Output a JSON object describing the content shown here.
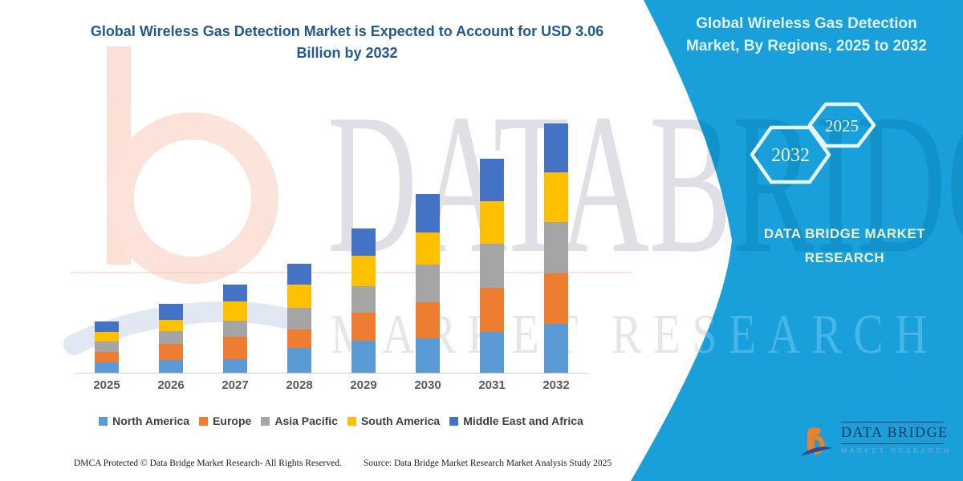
{
  "page": {
    "title": "Global Wireless Gas Detection Market is Expected to Account for USD 3.06 Billion by 2032"
  },
  "chart_data": {
    "type": "bar",
    "stacked": true,
    "title": "Global Wireless Gas Detection Market is Expected to Account for USD 3.06 Billion by 2032",
    "unit": "USD Billion",
    "categories": [
      "2025",
      "2026",
      "2027",
      "2028",
      "2029",
      "2030",
      "2031",
      "2032"
    ],
    "series": [
      {
        "name": "North America",
        "color": "#5B9BD5",
        "values": [
          0.13,
          0.16,
          0.17,
          0.3,
          0.39,
          0.42,
          0.5,
          0.6
        ]
      },
      {
        "name": "Europe",
        "color": "#ED7D31",
        "values": [
          0.13,
          0.2,
          0.27,
          0.23,
          0.34,
          0.44,
          0.54,
          0.62
        ]
      },
      {
        "name": "Asia Pacific",
        "color": "#A5A5A5",
        "values": [
          0.13,
          0.16,
          0.2,
          0.26,
          0.32,
          0.46,
          0.54,
          0.63
        ]
      },
      {
        "name": "South America",
        "color": "#FFC000",
        "values": [
          0.12,
          0.14,
          0.24,
          0.28,
          0.37,
          0.39,
          0.52,
          0.61
        ]
      },
      {
        "name": "Middle East and Africa",
        "color": "#4472C4",
        "values": [
          0.13,
          0.2,
          0.21,
          0.25,
          0.33,
          0.47,
          0.52,
          0.6
        ]
      }
    ],
    "totals": [
      0.64,
      0.86,
      1.09,
      1.32,
      1.75,
      2.18,
      2.62,
      3.06
    ],
    "ylim": [
      0,
      3.2
    ],
    "grid": false,
    "legend_position": "bottom"
  },
  "sidebar": {
    "heading": "Global Wireless Gas Detection Market, By Regions, 2025 to 2032",
    "hex_left_year": "2032",
    "hex_right_year": "2025",
    "brand_line1": "DATA BRIDGE MARKET",
    "brand_line2": "RESEARCH",
    "accent_color": "#199fd9"
  },
  "logo": {
    "name": "DATA BRIDGE",
    "subtitle": "MARKET RESEARCH"
  },
  "watermark": {
    "line1": "DATABRIDGE",
    "line2": "MARKET RESEARCH"
  },
  "footer": {
    "dmca": "DMCA Protected © Data Bridge Market Research- All Rights Reserved.",
    "source": "Source: Data Bridge Market Research Market Analysis Study 2025"
  }
}
